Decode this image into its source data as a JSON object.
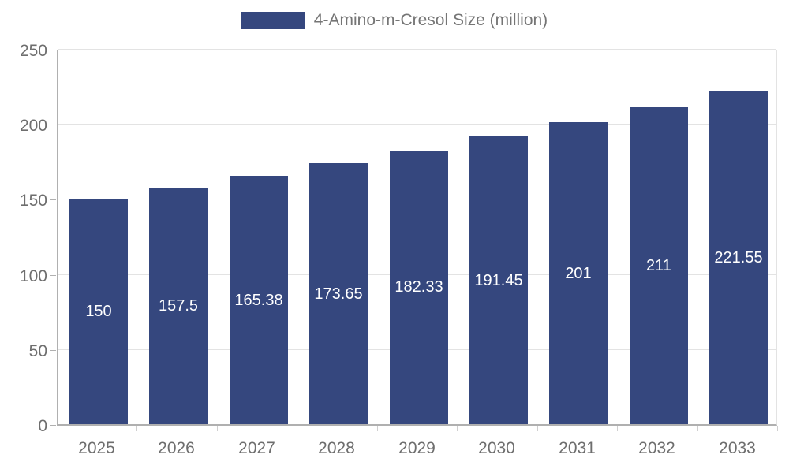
{
  "legend": {
    "label": "4-Amino-m-Cresol Size (million)"
  },
  "colors": {
    "bar": "#35477e",
    "grid": "#e3e3e3",
    "axis": "#b0b0b0",
    "tick_label": "#6e6e6e",
    "value_label": "#ffffff",
    "legend_text": "#757575"
  },
  "chart_data": {
    "type": "bar",
    "title": "",
    "legend": "4-Amino-m-Cresol Size (million)",
    "categories": [
      "2025",
      "2026",
      "2027",
      "2028",
      "2029",
      "2030",
      "2031",
      "2032",
      "2033"
    ],
    "values": [
      150,
      157.5,
      165.38,
      173.65,
      182.33,
      191.45,
      201,
      211,
      221.55
    ],
    "value_labels": [
      "150",
      "157.5",
      "165.38",
      "173.65",
      "182.33",
      "191.45",
      "201",
      "211",
      "221.55"
    ],
    "xlabel": "",
    "ylabel": "",
    "ylim": [
      0,
      250
    ],
    "yticks": [
      0,
      50,
      100,
      150,
      200,
      250
    ],
    "grid": true,
    "legend_position": "top-center",
    "value_label_position": "inside-center"
  }
}
